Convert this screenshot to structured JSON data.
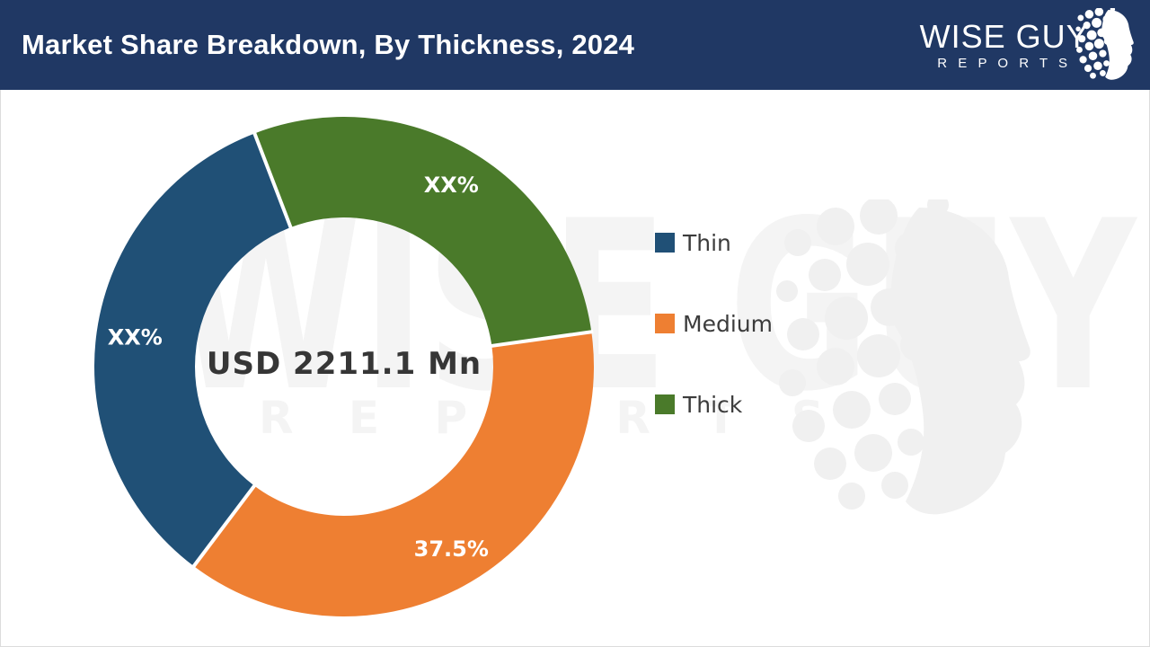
{
  "header": {
    "title": "Market Share Breakdown, By Thickness, 2024",
    "logo_wordmark": "WISE GUY",
    "logo_subtitle": "R E P O R T S"
  },
  "watermark": {
    "wordmark": "WISE GUY",
    "subtitle": "R E P O R T S"
  },
  "chart_data": {
    "type": "pie",
    "subtype": "donut",
    "title": "Market Share Breakdown, By Thickness, 2024",
    "center_label": "USD 2211.1 Mn",
    "legend_position": "right",
    "categories": [
      "Thin",
      "Medium",
      "Thick"
    ],
    "segments": [
      {
        "name": "Thin",
        "display_label": "XX%",
        "share_pct_est": 33.9,
        "start_deg": 111,
        "end_deg": 233,
        "color": "#205076"
      },
      {
        "name": "Medium",
        "display_label": "37.5%",
        "share_pct": 37.5,
        "start_deg": -127,
        "end_deg": 8,
        "color": "#ee7f32"
      },
      {
        "name": "Thick",
        "display_label": "XX%",
        "share_pct_est": 28.6,
        "start_deg": 8,
        "end_deg": 111,
        "color": "#4a7a2a"
      }
    ],
    "colors": {
      "header_band": "#203864",
      "segment_label_text": "#ffffff",
      "center_text": "#363636",
      "watermark": "#f4f4f4"
    }
  }
}
